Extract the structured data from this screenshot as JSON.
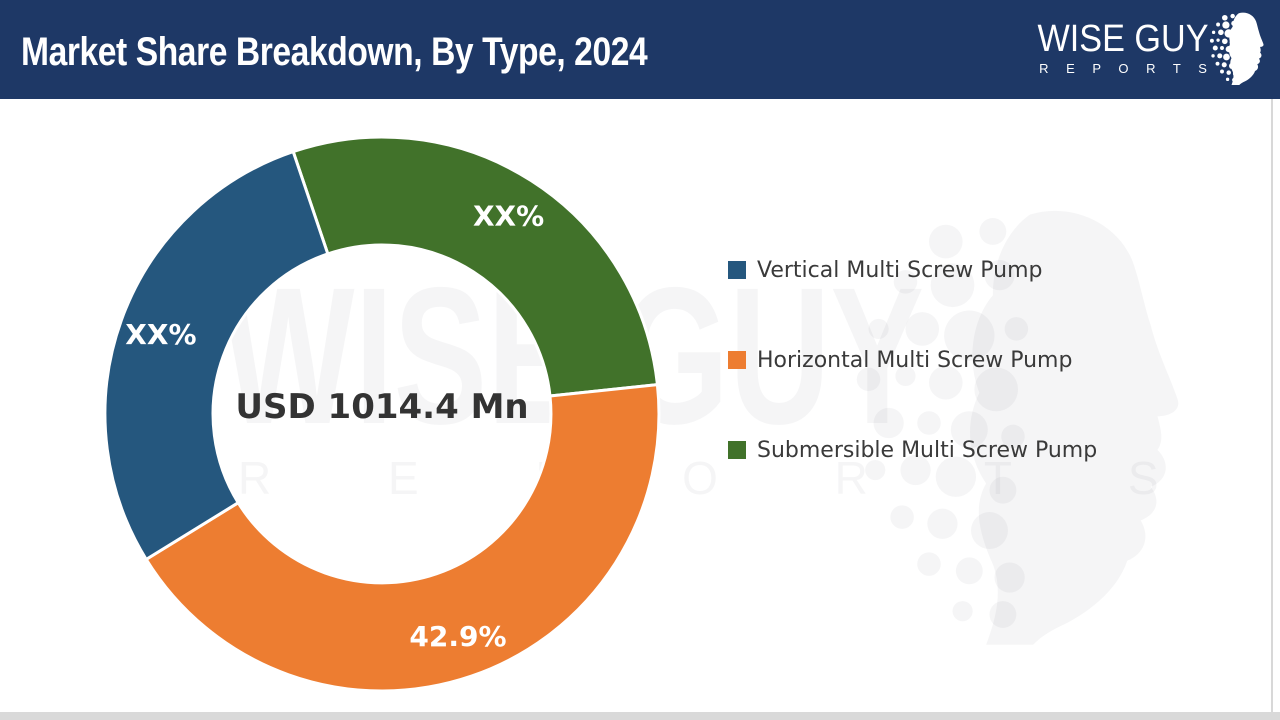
{
  "header": {
    "title": "Market Share Breakdown, By Type, 2024",
    "logo": {
      "line1": "WISE GUY",
      "line2": "R E P O R T S"
    }
  },
  "watermark": {
    "line1": "WISE GUY",
    "line2": "R E P O R T S"
  },
  "chart_data": {
    "type": "donut",
    "title": "Market Share Breakdown, By Type, 2024",
    "center_label": "USD 1014.4 Mn",
    "total_value": "USD 1014.4 Mn",
    "start_angle_deg": -18.7,
    "inner_radius_ratio": 0.61,
    "legend_position": "right",
    "slices": [
      {
        "name": "Submersible Multi Screw Pump",
        "pct": 28.5,
        "label": "XX%",
        "color": "#41722a"
      },
      {
        "name": "Horizontal Multi Screw Pump",
        "pct": 42.9,
        "label": "42.9%",
        "color": "#ed7d31"
      },
      {
        "name": "Vertical Multi Screw Pump",
        "pct": 28.6,
        "label": "XX%",
        "color": "#25577e"
      }
    ],
    "legend": {
      "items": [
        {
          "label": "Vertical Multi Screw Pump",
          "color": "#25577e"
        },
        {
          "label": "Horizontal Multi Screw Pump",
          "color": "#ed7d31"
        },
        {
          "label": "Submersible Multi Screw Pump",
          "color": "#41722a"
        }
      ]
    }
  },
  "colors": {
    "header_bg": "#1e3866",
    "footer_bar": "#d9d9d9",
    "slice_blue": "#25577e",
    "slice_orange": "#ed7d31",
    "slice_green": "#41722a",
    "text_dark": "#333333"
  }
}
